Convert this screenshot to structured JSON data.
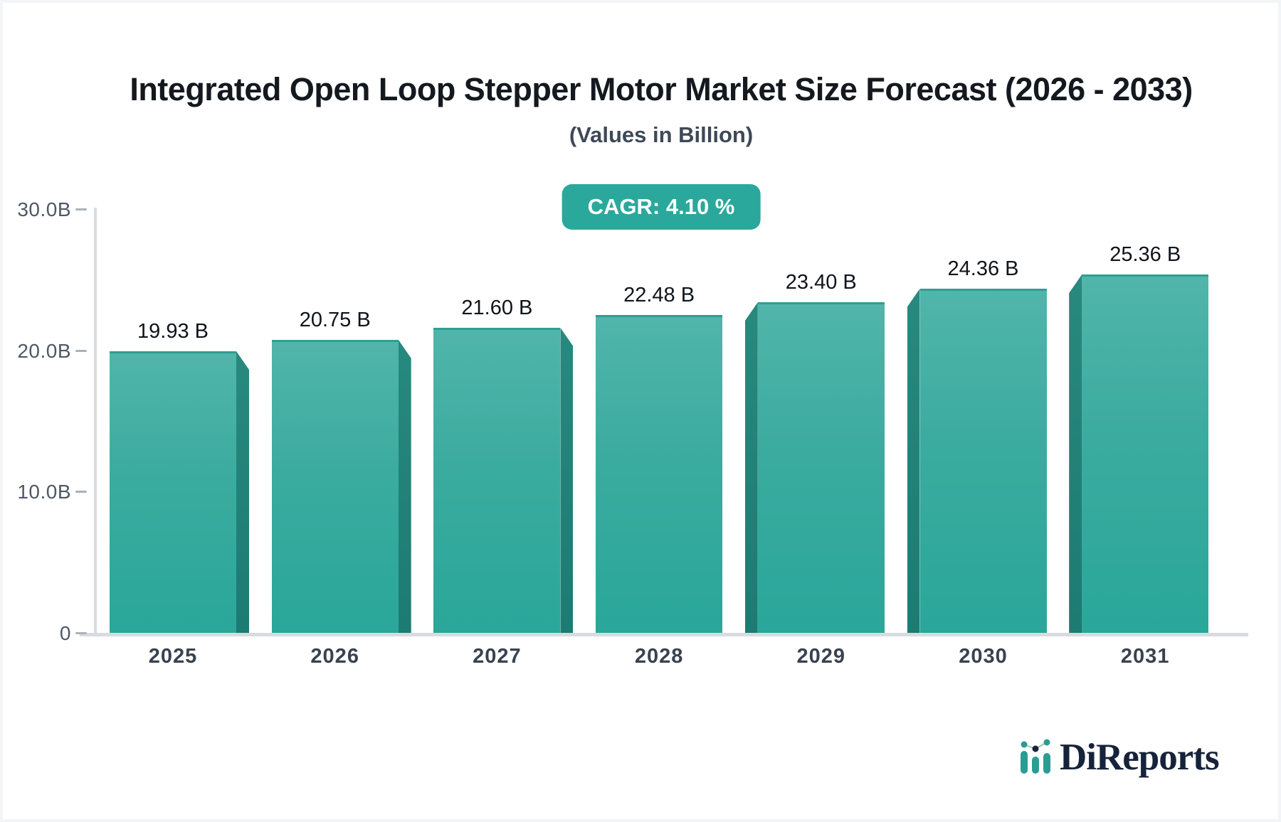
{
  "chart_data": {
    "type": "bar",
    "title": "Integrated Open Loop Stepper Motor Market Size Forecast (2026 - 2033)",
    "subtitle": "(Values in Billion)",
    "badge": "CAGR: 4.10 %",
    "categories": [
      "2025",
      "2026",
      "2027",
      "2028",
      "2029",
      "2030",
      "2031"
    ],
    "values": [
      19.93,
      20.75,
      21.6,
      22.48,
      23.4,
      24.36,
      25.36
    ],
    "bar_labels": [
      "19.93 B",
      "20.75 B",
      "21.60 B",
      "22.48 B",
      "23.40 B",
      "24.36 B",
      "25.36 B"
    ],
    "y_ticks": [
      {
        "label": "30.0B",
        "value": 30
      },
      {
        "label": "20.0B",
        "value": 20
      },
      {
        "label": "10.0B",
        "value": 10
      },
      {
        "label": "0",
        "value": 0
      }
    ],
    "ylim": [
      0,
      30
    ],
    "unit": "Billion",
    "legend": null,
    "grid": "off",
    "colors": {
      "bar_top": "#51b5ab",
      "bar_bottom": "#29a79a",
      "bar_side": "#1c7b72",
      "badge_bg": "#2ba89c",
      "axis": "#d8dbe0",
      "tick_label": "#4e5866",
      "value_label": "#0f141a"
    }
  },
  "logo": {
    "text": "DiReports",
    "icon": "mini-bar-line-chart-icon",
    "navy": "#16233a",
    "teal": "#2a9d93"
  }
}
